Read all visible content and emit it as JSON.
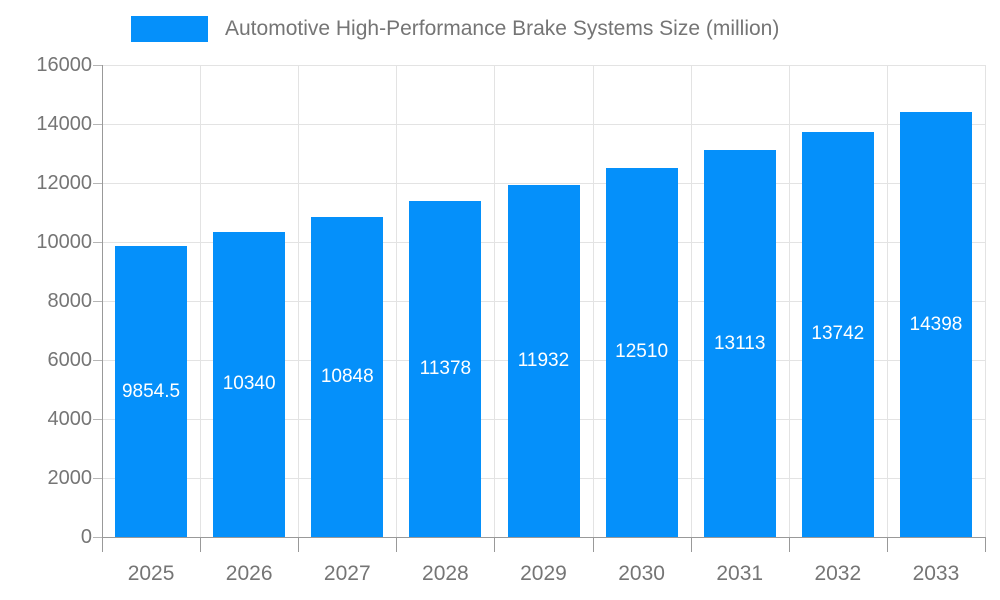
{
  "chart_data": {
    "type": "bar",
    "title": "Automotive High-Performance Brake Systems Size (million)",
    "categories": [
      "2025",
      "2026",
      "2027",
      "2028",
      "2029",
      "2030",
      "2031",
      "2032",
      "2033"
    ],
    "values": [
      9854.5,
      10340,
      10848,
      11378,
      11932,
      12510,
      13113,
      13742,
      14398
    ],
    "value_labels": [
      "9854.5",
      "10340",
      "10848",
      "11378",
      "11932",
      "12510",
      "13113",
      "13742",
      "14398"
    ],
    "xlabel": "",
    "ylabel": "",
    "ylim": [
      0,
      16000
    ],
    "ytick_step": 2000,
    "ytick_labels": [
      "0",
      "2000",
      "4000",
      "6000",
      "8000",
      "10000",
      "12000",
      "14000",
      "16000"
    ],
    "grid": true,
    "legend_position": "top",
    "colors": {
      "bar": "#0590fa",
      "bar_label_text": "#ffffff",
      "axis_text": "#757575",
      "axis_line": "#999999",
      "gridline": "#e3e3e3",
      "background": "#ffffff"
    }
  }
}
